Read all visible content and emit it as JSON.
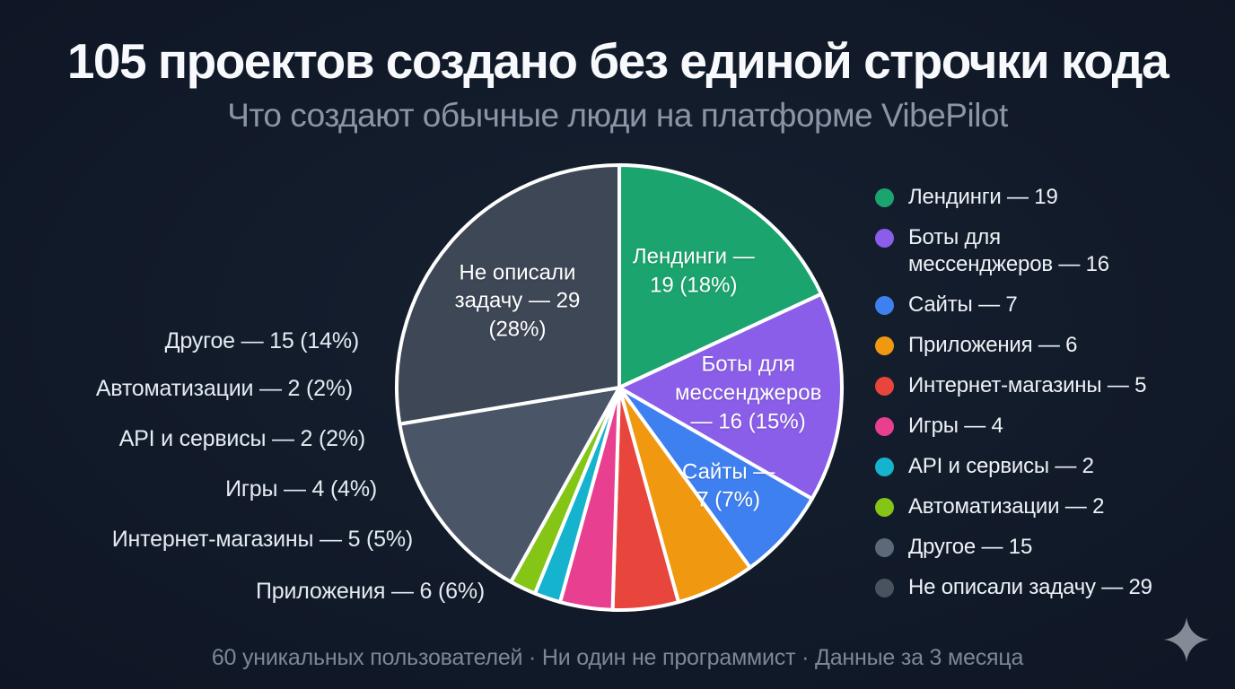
{
  "header": {
    "title": "105 проектов создано без единой строчки кода",
    "subtitle": "Что создают обычные люди на платформе VibePilot"
  },
  "chart_data": {
    "type": "pie",
    "title": "105 проектов создано без единой строчки кода",
    "subtitle": "Что создают обычные люди на платформе VibePilot",
    "total": 105,
    "start_angle_deg": 0,
    "direction": "clockwise",
    "legend_position": "right",
    "categories": [
      "Лендинги",
      "Боты для мессенджеров",
      "Сайты",
      "Приложения",
      "Интернет-магазины",
      "Игры",
      "API и сервисы",
      "Автоматизации",
      "Другое",
      "Не описали задачу"
    ],
    "values": [
      19,
      16,
      7,
      6,
      5,
      4,
      2,
      2,
      15,
      29
    ],
    "percents": [
      18,
      15,
      7,
      6,
      5,
      4,
      2,
      2,
      14,
      28
    ],
    "colors": [
      "#1CA46E",
      "#8A5EE8",
      "#3F80F0",
      "#F0980F",
      "#E8453C",
      "#E83F90",
      "#16B3CF",
      "#84C516",
      "#4A5567",
      "#3E4755"
    ],
    "inside_labels": [
      {
        "slice": 0,
        "text": "Лендинги —\n19 (18%)"
      },
      {
        "slice": 1,
        "text": "Боты для\nмессенджеров\n— 16 (15%)"
      },
      {
        "slice": 2,
        "text": "Сайты —\n7 (7%)"
      },
      {
        "slice": 9,
        "text": "Не описали\nзадачу — 29\n(28%)"
      }
    ]
  },
  "left_labels": [
    "Другое — 15 (14%)",
    "Автоматизации — 2 (2%)",
    "API и сервисы — 2 (2%)",
    "Игры — 4 (4%)",
    "Интернет-магазины — 5 (5%)",
    "Приложения — 6 (6%)"
  ],
  "legend": {
    "items": [
      {
        "label": "Лендинги — 19",
        "color": "#1CA46E"
      },
      {
        "label": "Боты для\nмессенджеров — 16",
        "color": "#8A5EE8"
      },
      {
        "label": "Сайты — 7",
        "color": "#3F80F0"
      },
      {
        "label": "Приложения — 6",
        "color": "#F0980F"
      },
      {
        "label": "Интернет-магазины — 5",
        "color": "#E8453C"
      },
      {
        "label": "Игры — 4",
        "color": "#E83F90"
      },
      {
        "label": "API и сервисы — 2",
        "color": "#16B3CF"
      },
      {
        "label": "Автоматизации — 2",
        "color": "#84C516"
      },
      {
        "label": "Другое — 15",
        "color": "#5D6878"
      },
      {
        "label": "Не описали задачу — 29",
        "color": "#49525F"
      }
    ]
  },
  "footer": {
    "text": "60 уникальных пользователей · Ни один не программист · Данные за 3 месяца"
  },
  "icons": {
    "sparkle_color": "#98A0AC"
  }
}
